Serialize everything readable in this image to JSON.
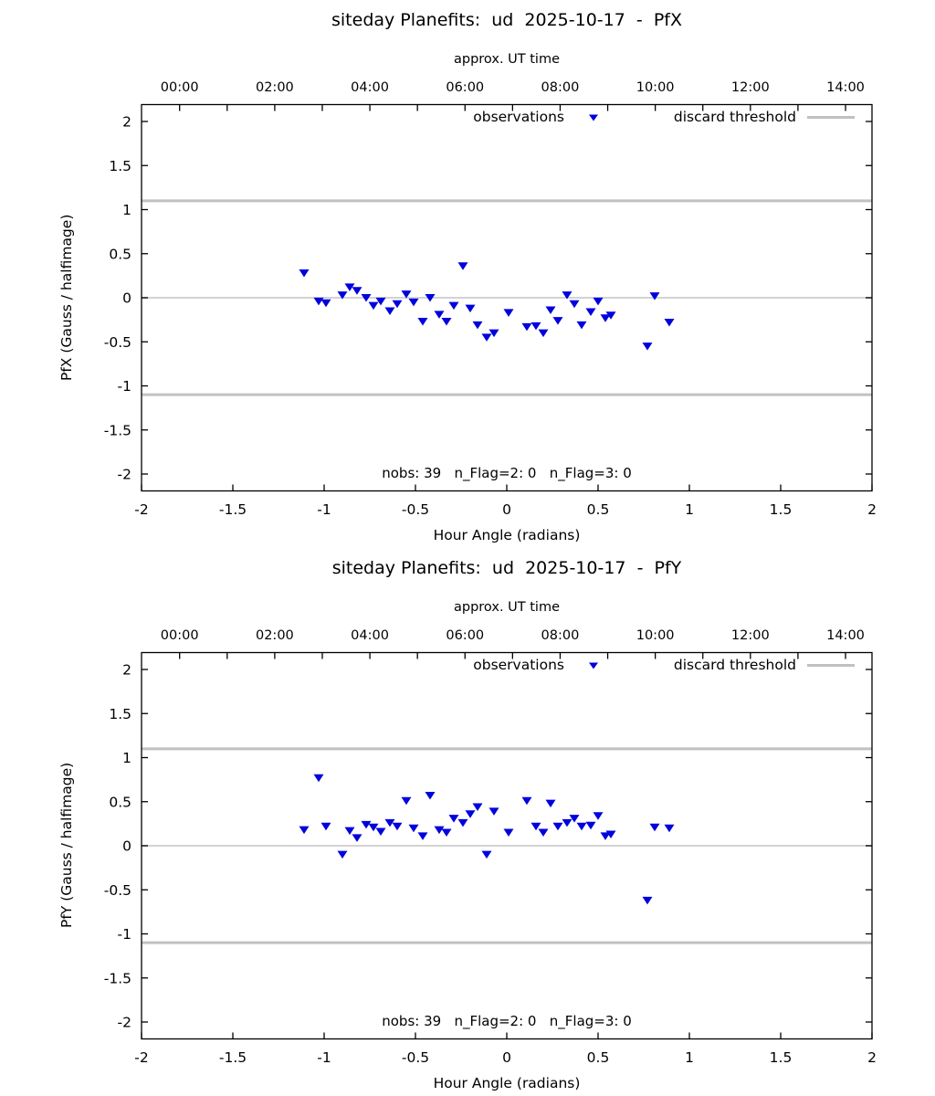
{
  "colors": {
    "marker_blue": "#0000dd",
    "threshold_gray": "#c1c1c1",
    "zero_line_gray": "#d3d3d3",
    "axis_black": "#000000",
    "background": "#ffffff"
  },
  "chart_data": [
    {
      "type": "scatter",
      "title": "siteday Planefits:  ud  2025-10-17  -  PfX",
      "top_axis_label": "approx. UT time",
      "xlabel": "Hour Angle (radians)",
      "ylabel": "PfX (Gauss / halfimage)",
      "annotation": "nobs: 39   n_Flag=2: 0   n_Flag=3: 0",
      "xlim": [
        -2,
        2
      ],
      "ylim": [
        -2.19,
        2.19
      ],
      "x_ticks": [
        -2,
        -1.5,
        -1,
        -0.5,
        0,
        0.5,
        1,
        1.5,
        2
      ],
      "y_ticks": [
        -2,
        -1.5,
        -1,
        -0.5,
        0,
        0.5,
        1,
        1.5,
        2
      ],
      "ut_axis": {
        "labels": [
          "00:00",
          "02:00",
          "04:00",
          "06:00",
          "08:00",
          "10:00",
          "12:00",
          "14:00"
        ],
        "label_every_hours": 2,
        "total_hours": 14,
        "hour_angle_at_00": -1.7915,
        "radians_per_hour": 0.26047
      },
      "grid": "zero-line only",
      "legend_position": "top inside",
      "legend": [
        {
          "label": "observations",
          "type": "marker"
        },
        {
          "label": "discard threshold",
          "type": "line"
        }
      ],
      "threshold": 1.1,
      "zero_line": 0,
      "series": [
        {
          "name": "observations",
          "marker": "triangle-down",
          "x": [
            -1.11,
            -1.03,
            -0.99,
            -0.9,
            -0.86,
            -0.82,
            -0.77,
            -0.73,
            -0.69,
            -0.64,
            -0.6,
            -0.55,
            -0.51,
            -0.46,
            -0.42,
            -0.37,
            -0.33,
            -0.29,
            -0.24,
            -0.2,
            -0.16,
            -0.11,
            -0.07,
            0.01,
            0.11,
            0.16,
            0.2,
            0.24,
            0.28,
            0.33,
            0.37,
            0.41,
            0.46,
            0.5,
            0.54,
            0.57,
            0.77,
            0.81,
            0.89
          ],
          "y": [
            0.28,
            -0.04,
            -0.06,
            0.03,
            0.12,
            0.08,
            0.0,
            -0.09,
            -0.04,
            -0.15,
            -0.07,
            0.04,
            -0.05,
            -0.27,
            0.0,
            -0.19,
            -0.27,
            -0.09,
            0.36,
            -0.12,
            -0.31,
            -0.45,
            -0.4,
            -0.17,
            -0.33,
            -0.32,
            -0.4,
            -0.14,
            -0.26,
            0.03,
            -0.07,
            -0.31,
            -0.16,
            -0.04,
            -0.23,
            -0.2,
            -0.55,
            0.02,
            -0.28
          ]
        }
      ]
    },
    {
      "type": "scatter",
      "title": "siteday Planefits:  ud  2025-10-17  -  PfY",
      "top_axis_label": "approx. UT time",
      "xlabel": "Hour Angle (radians)",
      "ylabel": "PfY (Gauss / halfimage)",
      "annotation": "nobs: 39   n_Flag=2: 0   n_Flag=3: 0",
      "xlim": [
        -2,
        2
      ],
      "ylim": [
        -2.19,
        2.19
      ],
      "x_ticks": [
        -2,
        -1.5,
        -1,
        -0.5,
        0,
        0.5,
        1,
        1.5,
        2
      ],
      "y_ticks": [
        -2,
        -1.5,
        -1,
        -0.5,
        0,
        0.5,
        1,
        1.5,
        2
      ],
      "ut_axis": {
        "labels": [
          "00:00",
          "02:00",
          "04:00",
          "06:00",
          "08:00",
          "10:00",
          "12:00",
          "14:00"
        ],
        "label_every_hours": 2,
        "total_hours": 14,
        "hour_angle_at_00": -1.7915,
        "radians_per_hour": 0.26047
      },
      "grid": "zero-line only",
      "legend_position": "top inside",
      "legend": [
        {
          "label": "observations",
          "type": "marker"
        },
        {
          "label": "discard threshold",
          "type": "line"
        }
      ],
      "threshold": 1.1,
      "zero_line": 0,
      "series": [
        {
          "name": "observations",
          "marker": "triangle-down",
          "x": [
            -1.11,
            -1.03,
            -0.99,
            -0.9,
            -0.86,
            -0.82,
            -0.77,
            -0.73,
            -0.69,
            -0.64,
            -0.6,
            -0.55,
            -0.51,
            -0.46,
            -0.42,
            -0.37,
            -0.33,
            -0.29,
            -0.24,
            -0.2,
            -0.16,
            -0.11,
            -0.07,
            0.01,
            0.11,
            0.16,
            0.2,
            0.24,
            0.28,
            0.33,
            0.37,
            0.41,
            0.46,
            0.5,
            0.54,
            0.57,
            0.77,
            0.81,
            0.89
          ],
          "y": [
            0.18,
            0.77,
            0.22,
            -0.1,
            0.17,
            0.09,
            0.24,
            0.21,
            0.16,
            0.26,
            0.22,
            0.51,
            0.2,
            0.11,
            0.57,
            0.18,
            0.15,
            0.31,
            0.26,
            0.36,
            0.44,
            -0.1,
            0.39,
            0.15,
            0.51,
            0.22,
            0.15,
            0.48,
            0.22,
            0.26,
            0.31,
            0.22,
            0.23,
            0.34,
            0.11,
            0.13,
            -0.62,
            0.21,
            0.2
          ]
        }
      ]
    }
  ]
}
